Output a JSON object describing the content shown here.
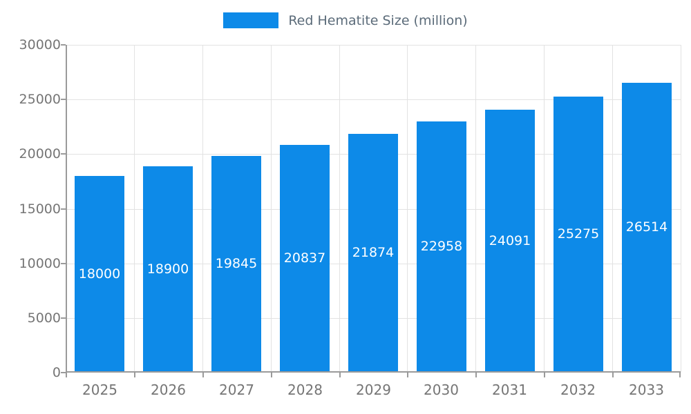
{
  "chart_data": {
    "type": "bar",
    "title": "Red Hematite Size (million)",
    "legend_position": "top",
    "categories": [
      "2025",
      "2026",
      "2027",
      "2028",
      "2029",
      "2030",
      "2031",
      "2032",
      "2033"
    ],
    "series": [
      {
        "name": "Red Hematite Size (million)",
        "values": [
          18000,
          18900,
          19845,
          20837,
          21874,
          22958,
          24091,
          25275,
          26514
        ]
      }
    ],
    "data_labels": [
      "18000",
      "18900",
      "19845",
      "20837",
      "21874",
      "22958",
      "24091",
      "25275",
      "26514"
    ],
    "xlabel": "",
    "ylabel": "",
    "ylim": [
      0,
      30000
    ],
    "yticks": [
      0,
      5000,
      10000,
      15000,
      20000,
      25000,
      30000
    ],
    "grid": true
  },
  "colors": {
    "bar": "#0d8ae8",
    "bar_label": "#ffffff",
    "axis_text": "#757575",
    "title_text": "#5b6b79",
    "grid_line": "#e2e2e2",
    "axis_line": "#9a9a9a"
  }
}
